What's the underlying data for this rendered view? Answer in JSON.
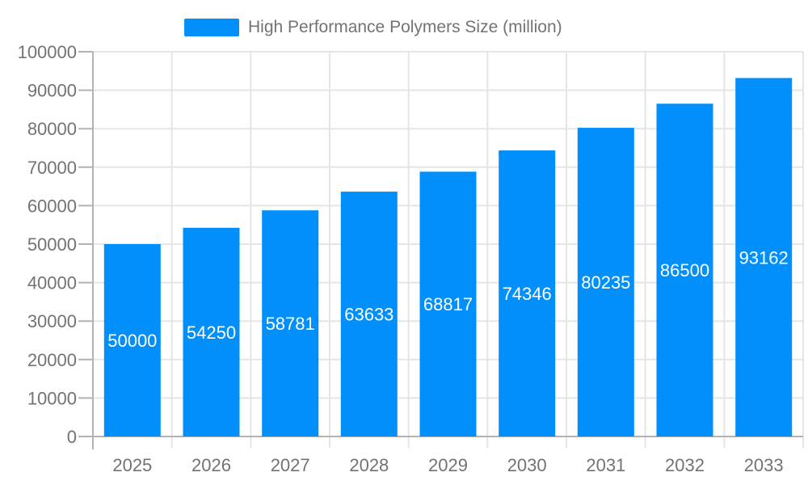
{
  "legend": {
    "position": "top",
    "items": [
      {
        "label": "High Performance Polymers Size (million)",
        "color": "#008FFB"
      }
    ]
  },
  "chart_data": {
    "type": "bar",
    "title": "High Performance Polymers Size (million)",
    "categories": [
      "2025",
      "2026",
      "2027",
      "2028",
      "2029",
      "2030",
      "2031",
      "2032",
      "2033"
    ],
    "series": [
      {
        "name": "High Performance Polymers Size (million)",
        "values": [
          50000,
          54250,
          58781,
          63633,
          68817,
          74346,
          80235,
          86500,
          93162
        ]
      }
    ],
    "value_labels": [
      "50000",
      "54250",
      "58781",
      "63633",
      "68817",
      "74346",
      "80235",
      "86500",
      "93162"
    ],
    "xlabel": "",
    "ylabel": "",
    "ylim": [
      0,
      100000
    ],
    "ytick_step": 10000,
    "ytick_labels": [
      "0",
      "10000",
      "20000",
      "30000",
      "40000",
      "50000",
      "60000",
      "70000",
      "80000",
      "90000",
      "100000"
    ],
    "grid": true,
    "legend_position": "top",
    "colors": {
      "bar": "#008FFB",
      "axis_text": "#737373",
      "value_text": "#ffffff",
      "grid_line": "#e5e5e5",
      "axis_line": "#b3b3b3"
    }
  }
}
